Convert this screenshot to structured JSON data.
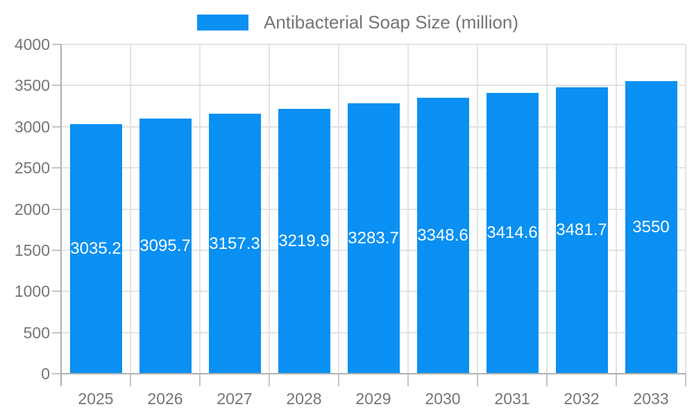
{
  "chart_data": {
    "type": "bar",
    "title": "Antibacterial Soap Size (million)",
    "categories": [
      "2025",
      "2026",
      "2027",
      "2028",
      "2029",
      "2030",
      "2031",
      "2032",
      "2033"
    ],
    "series": [
      {
        "name": "Antibacterial Soap Size (million)",
        "values": [
          3035.2,
          3095.7,
          3157.3,
          3219.9,
          3283.7,
          3348.6,
          3414.6,
          3481.7,
          3550
        ]
      }
    ],
    "bar_value_labels": [
      "3035.2",
      "3095.7",
      "3157.3",
      "3219.9",
      "3283.7",
      "3348.6",
      "3414.6",
      "3481.7",
      "3550"
    ],
    "xlabel": "",
    "ylabel": "",
    "ylim": [
      0,
      4000
    ],
    "ytick_labels": [
      "0",
      "500",
      "1000",
      "1500",
      "2000",
      "2500",
      "3000",
      "3500",
      "4000"
    ],
    "grid": true,
    "legend_position": "top-center",
    "colors": {
      "bar": "#0a90f2",
      "axis": "#b0b0b0",
      "gridline": "#e3e3e3",
      "tick": "#c4c4c4",
      "axis_label_text": "#757575",
      "bar_label_text": "#ffffff",
      "background": "#ffffff"
    }
  }
}
